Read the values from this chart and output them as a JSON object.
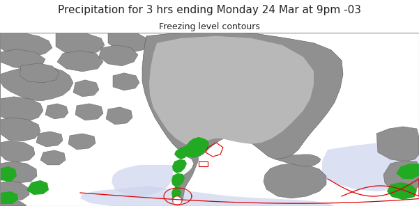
{
  "title": "Precipitation for 3 hrs ending Monday 24 Mar at 9pm -03",
  "subtitle": "Freezing level contours",
  "title_fontsize": 11,
  "subtitle_fontsize": 9,
  "title_color": "#222222",
  "ocean_color": "#dde2f0",
  "land_color": "#909090",
  "ice_color": "#b8b8b8",
  "header_bg": "#ffffff",
  "green_precip": "#22aa22",
  "white_precip": "#ffffff",
  "red_contour": "#dd0000",
  "light_precip_color": "#ccd4ee",
  "figsize": [
    6.01,
    2.96
  ],
  "dpi": 100
}
